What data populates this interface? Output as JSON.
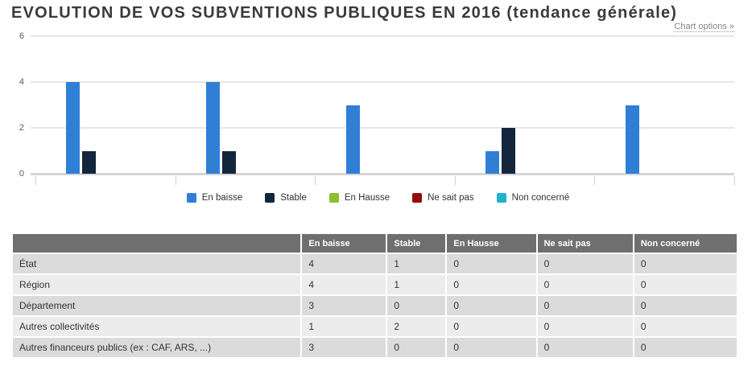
{
  "page": {
    "title": "EVOLUTION DE VOS SUBVENTIONS PUBLIQUES EN 2016 (tendance générale)",
    "chart_options_label": "Chart options »"
  },
  "chart_data": {
    "type": "bar",
    "title": "EVOLUTION DE VOS SUBVENTIONS PUBLIQUES EN 2016 (tendance générale)",
    "categories": [
      "État",
      "Région",
      "Département",
      "Autres collectivités",
      "Autres financeurs publics (ex : CAF, ARS, ...)"
    ],
    "series": [
      {
        "name": "En baisse",
        "color": "#2f80d5",
        "values": [
          4,
          4,
          3,
          1,
          3
        ]
      },
      {
        "name": "Stable",
        "color": "#13263e",
        "values": [
          1,
          1,
          0,
          2,
          0
        ]
      },
      {
        "name": "En Hausse",
        "color": "#8cc02c",
        "values": [
          0,
          0,
          0,
          0,
          0
        ]
      },
      {
        "name": "Ne sait pas",
        "color": "#930d10",
        "values": [
          0,
          0,
          0,
          0,
          0
        ]
      },
      {
        "name": "Non concerné",
        "color": "#21b1cc",
        "values": [
          0,
          0,
          0,
          0,
          0
        ]
      }
    ],
    "xlabel": "",
    "ylabel": "",
    "ylim": [
      0,
      6
    ],
    "yticks": [
      0,
      2,
      4,
      6
    ],
    "grid": true,
    "legend_position": "bottom",
    "category_axis_labels_hidden": true
  },
  "table": {
    "columns": [
      "",
      "En baisse",
      "Stable",
      "En Hausse",
      "Ne sait pas",
      "Non concerné"
    ],
    "rows": [
      {
        "label": "État",
        "values": [
          4,
          1,
          0,
          0,
          0
        ]
      },
      {
        "label": "Région",
        "values": [
          4,
          1,
          0,
          0,
          0
        ]
      },
      {
        "label": "Département",
        "values": [
          3,
          0,
          0,
          0,
          0
        ]
      },
      {
        "label": "Autres collectivités",
        "values": [
          1,
          2,
          0,
          0,
          0
        ]
      },
      {
        "label": "Autres financeurs publics (ex : CAF, ARS, ...)",
        "values": [
          3,
          0,
          0,
          0,
          0
        ]
      }
    ]
  },
  "colors": {
    "accent_blue": "#2f80d5",
    "navy": "#13263e",
    "green": "#8cc02c",
    "dark_red": "#930d10",
    "cyan": "#21b1cc",
    "table_header_bg": "#6f6f6f",
    "row_odd_bg": "#dbdbdb",
    "row_even_bg": "#ececec"
  }
}
